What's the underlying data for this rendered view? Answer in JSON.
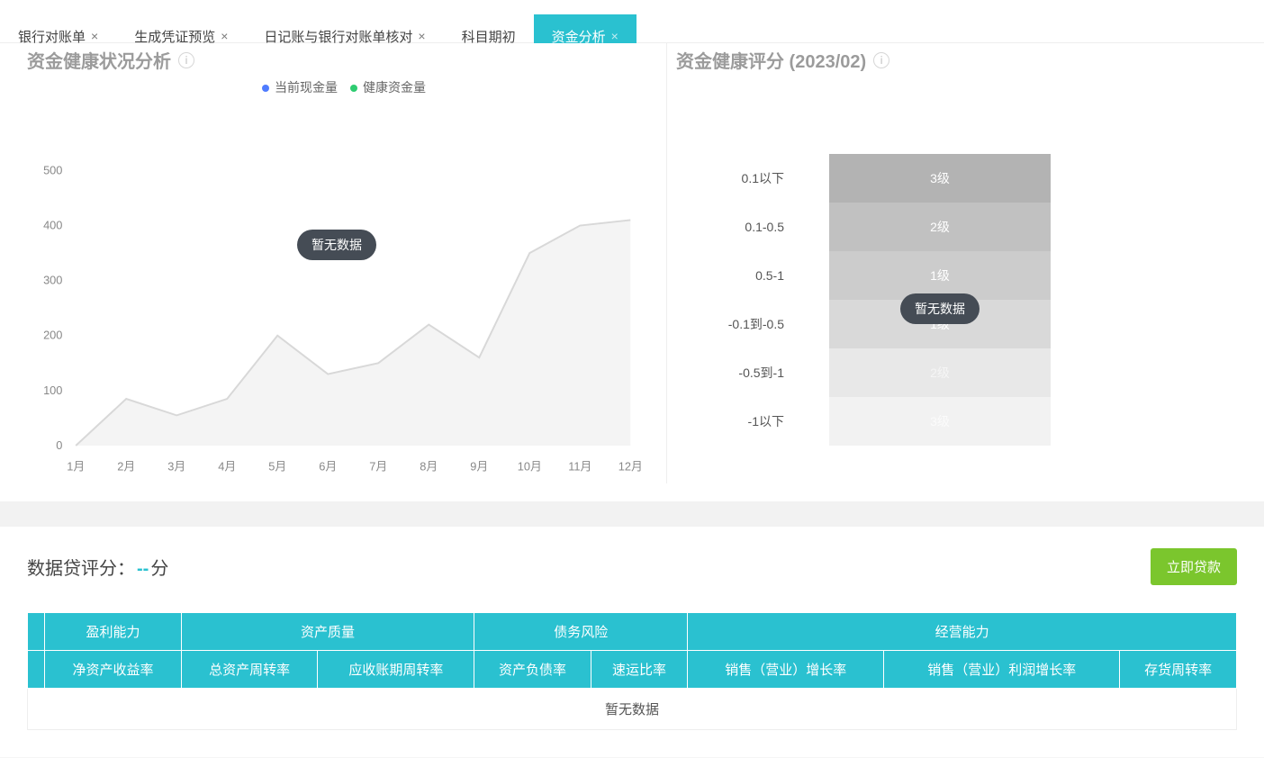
{
  "tabs": [
    {
      "label": "银行对账单",
      "closable": true,
      "active": false
    },
    {
      "label": "生成凭证预览",
      "closable": true,
      "active": false
    },
    {
      "label": "日记账与银行对账单核对",
      "closable": true,
      "active": false
    },
    {
      "label": "科目期初",
      "closable": false,
      "active": false
    },
    {
      "label": "资金分析",
      "closable": true,
      "active": true
    }
  ],
  "left_panel": {
    "title": "资金健康状况分析",
    "legend": [
      {
        "label": "当前现金量",
        "color": "#4f7cff"
      },
      {
        "label": "健康资金量",
        "color": "#2ecc71"
      }
    ],
    "chart": {
      "type": "line-area",
      "ylim": [
        0,
        500
      ],
      "ytick_step": 100,
      "yticks": [
        0,
        100,
        200,
        300,
        400,
        500
      ],
      "x_categories": [
        "1月",
        "2月",
        "3月",
        "4月",
        "5月",
        "6月",
        "7月",
        "8月",
        "9月",
        "10月",
        "11月",
        "12月"
      ],
      "values": [
        0,
        85,
        55,
        85,
        200,
        130,
        150,
        220,
        160,
        350,
        400,
        410
      ],
      "line_color": "#d8d8d8",
      "area_color": "#f4f4f4",
      "grid_color": "#eeeeee",
      "axis_label_color": "#888888",
      "background_color": "#ffffff",
      "no_data_label": "暂无数据",
      "no_data_badge_bg": "#454c55",
      "no_data_badge_color": "#ffffff"
    }
  },
  "right_panel": {
    "title": "资金健康评分 (2023/02)",
    "ladder": {
      "rows": [
        {
          "range": "0.1以下",
          "level": "3级",
          "bg": "#b3b3b3",
          "fg": "#ffffff"
        },
        {
          "range": "0.1-0.5",
          "level": "2级",
          "bg": "#c1c1c1",
          "fg": "#ffffff"
        },
        {
          "range": "0.5-1",
          "level": "1级",
          "bg": "#cccccc",
          "fg": "#ffffff"
        },
        {
          "range": "-0.1到-0.5",
          "level": "1级",
          "bg": "#d9d9d9",
          "fg": "#ffffff"
        },
        {
          "range": "-0.5到-1",
          "level": "2级",
          "bg": "#e8e8e8",
          "fg": "#f5f5f5"
        },
        {
          "range": "-1以下",
          "level": "3级",
          "bg": "#f2f2f2",
          "fg": "#fbfbfb"
        }
      ],
      "no_data_label": "暂无数据",
      "no_data_badge_bg": "#454c55",
      "no_data_badge_color": "#ffffff"
    }
  },
  "lower": {
    "score_prefix": "数据贷评分：",
    "score_value": "--",
    "score_suffix": "分",
    "loan_button": "立即贷款",
    "loan_button_bg": "#7bc62d",
    "table": {
      "header_bg": "#2ac1d0",
      "header_fg": "#ffffff",
      "groups": [
        {
          "label": "",
          "span": 1
        },
        {
          "label": "盈利能力",
          "span": 1
        },
        {
          "label": "资产质量",
          "span": 2
        },
        {
          "label": "债务风险",
          "span": 2
        },
        {
          "label": "经营能力",
          "span": 3
        }
      ],
      "columns": [
        "",
        "净资产收益率",
        "总资产周转率",
        "应收账期周转率",
        "资产负债率",
        "速运比率",
        "销售（营业）增长率",
        "销售（营业）利润增长率",
        "存货周转率"
      ],
      "empty_row_label": "暂无数据"
    }
  }
}
